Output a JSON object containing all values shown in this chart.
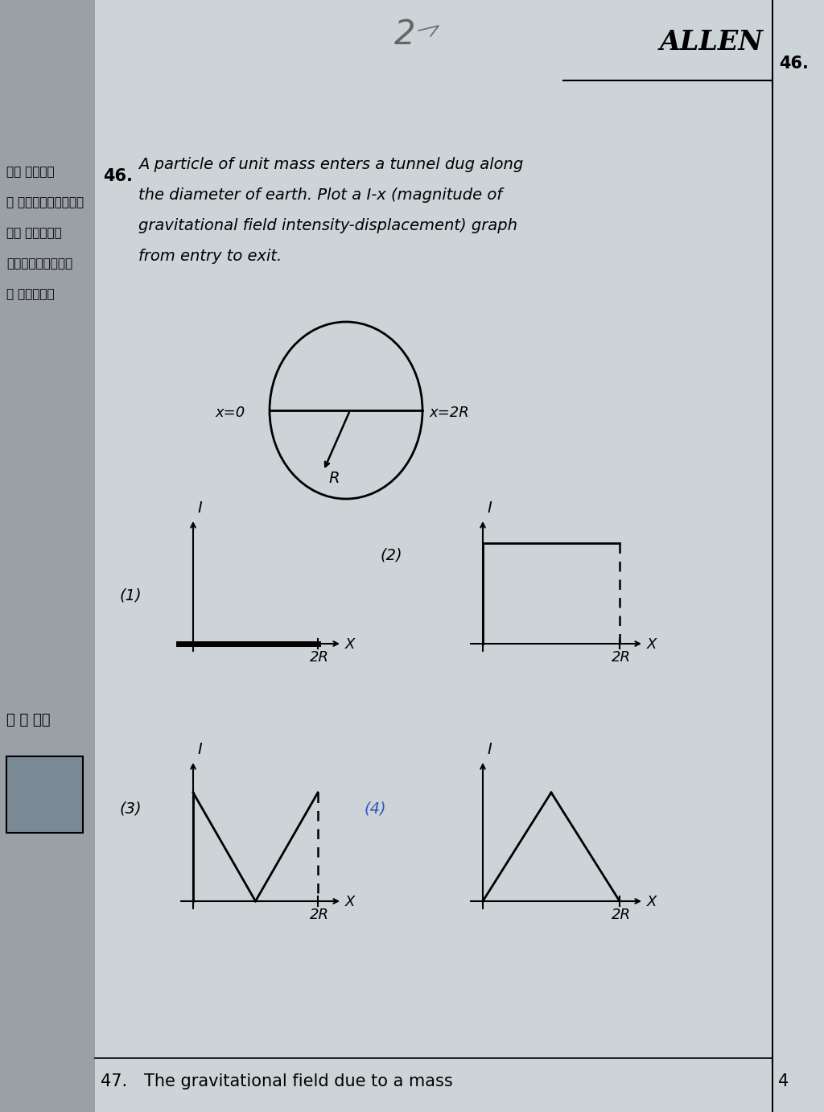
{
  "bg_color": "#b8bec4",
  "page_bg": "#cdd4d8",
  "allen_text": "ALLEN",
  "problem_num": "46.",
  "problem_text_line1": "A particle of unit mass enters a tunnel dug along",
  "problem_text_line2": "the diameter of earth. Plot a I-x (magnitude of",
  "problem_text_line3": "gravitational field intensity-displacement) graph",
  "problem_text_line4": "from entry to exit.",
  "hindi_lines": [
    "एक समान",
    "क उर्ध्वाधर",
    "का घर्षण",
    "उर्ध्वाधर",
    "ण बनाती"
  ],
  "hindi_bottom": "ी न हो",
  "next_problem": "47. The gravitational field due to a mass",
  "right_num": "46.",
  "right_bottom_num": "4",
  "circle_x0": "x=0",
  "circle_x2R": "x=2R",
  "circle_R": "R",
  "graph1_label": "(1)",
  "graph2_label": "(2)",
  "graph3_label": "(3)",
  "graph4_label": "(4)",
  "xR_label": "2R",
  "I_label": "I",
  "X_label": "X"
}
